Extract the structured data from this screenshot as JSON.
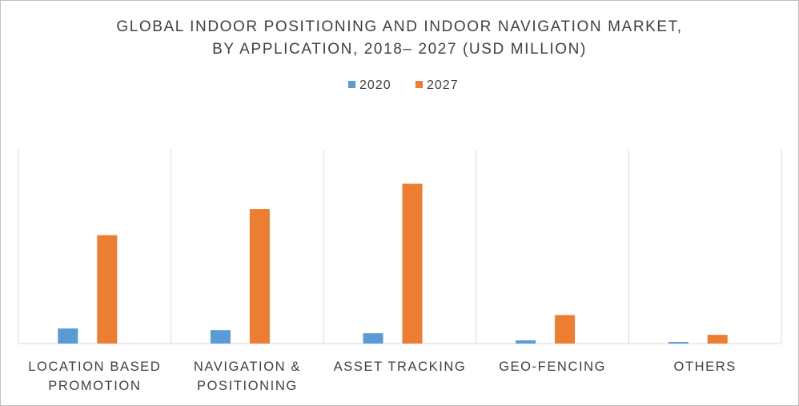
{
  "chart_data": {
    "type": "bar",
    "title": [
      "GLOBAL INDOOR POSITIONING AND INDOOR NAVIGATION MARKET,",
      "BY APPLICATION, 2018– 2027 (USD MILLION)"
    ],
    "categories": [
      [
        "LOCATION BASED",
        "PROMOTION"
      ],
      [
        "NAVIGATION &",
        "POSITIONING"
      ],
      [
        "ASSET TRACKING"
      ],
      [
        "GEO-FENCING"
      ],
      [
        "OTHERS"
      ]
    ],
    "series": [
      {
        "name": "2020",
        "color": "#5b9bd5",
        "values": [
          19,
          17,
          13,
          4,
          2
        ]
      },
      {
        "name": "2027",
        "color": "#ed7d31",
        "values": [
          137,
          170,
          202,
          36,
          11
        ]
      }
    ],
    "ylim": [
      0,
      245
    ],
    "legend_position": "top",
    "vertical_category_dividers": true,
    "y_axis_shown": false
  }
}
